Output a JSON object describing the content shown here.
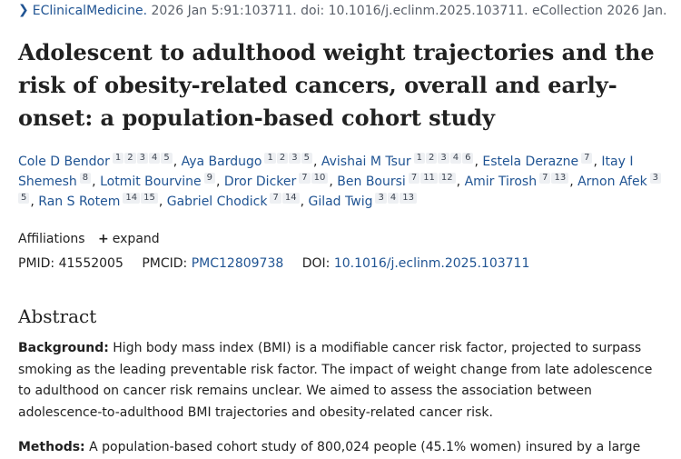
{
  "citation": {
    "chevron_icon": "chevron-right-icon",
    "journal": "EClinicalMedicine.",
    "rest": " 2026 Jan 5:91:103711. doi: 10.1016/j.eclinm.2025.103711. eCollection 2026 Jan."
  },
  "article": {
    "title": "Adolescent to adulthood weight trajectories and the risk of obesity-related cancers, overall and early-onset: a population-based cohort study"
  },
  "authors": [
    {
      "name": "Cole D Bendor",
      "affils": [
        "1",
        "2",
        "3",
        "4",
        "5"
      ]
    },
    {
      "name": "Aya Bardugo",
      "affils": [
        "1",
        "2",
        "3",
        "5"
      ]
    },
    {
      "name": "Avishai M Tsur",
      "affils": [
        "1",
        "2",
        "3",
        "4",
        "6"
      ]
    },
    {
      "name": "Estela Derazne",
      "affils": [
        "7"
      ]
    },
    {
      "name": "Itay I Shemesh",
      "affils": [
        "8"
      ]
    },
    {
      "name": "Lotmit Bourvine",
      "affils": [
        "9"
      ]
    },
    {
      "name": "Dror Dicker",
      "affils": [
        "7",
        "10"
      ]
    },
    {
      "name": "Ben Boursi",
      "affils": [
        "7",
        "11",
        "12"
      ]
    },
    {
      "name": "Amir Tirosh",
      "affils": [
        "7",
        "13"
      ]
    },
    {
      "name": "Arnon Afek",
      "affils": [
        "3",
        "5"
      ]
    },
    {
      "name": "Ran S Rotem",
      "affils": [
        "14",
        "15"
      ]
    },
    {
      "name": "Gabriel Chodick",
      "affils": [
        "7",
        "14"
      ]
    },
    {
      "name": "Gilad Twig",
      "affils": [
        "3",
        "4",
        "13"
      ]
    }
  ],
  "affiliations": {
    "label": "Affiliations",
    "expand_label": "expand",
    "plus_icon": "plus-icon"
  },
  "identifiers": {
    "pmid_label": "PMID:",
    "pmid": "41552005",
    "pmcid_label": "PMCID:",
    "pmcid": "PMC12809738",
    "doi_label": "DOI:",
    "doi": "10.1016/j.eclinm.2025.103711"
  },
  "abstract": {
    "heading": "Abstract",
    "background_label": "Background:",
    "background_text": "High body mass index (BMI) is a modifiable cancer risk factor, projected to surpass smoking as the leading preventable risk factor. The impact of weight change from late adolescence to adulthood on cancer risk remains unclear. We aimed to assess the association between adolescence-to-adulthood BMI trajectories and obesity-related cancer risk.",
    "methods_label": "Methods:",
    "methods_text": "A population-based cohort study of 800,024 people (45.1% women) insured by a large"
  }
}
